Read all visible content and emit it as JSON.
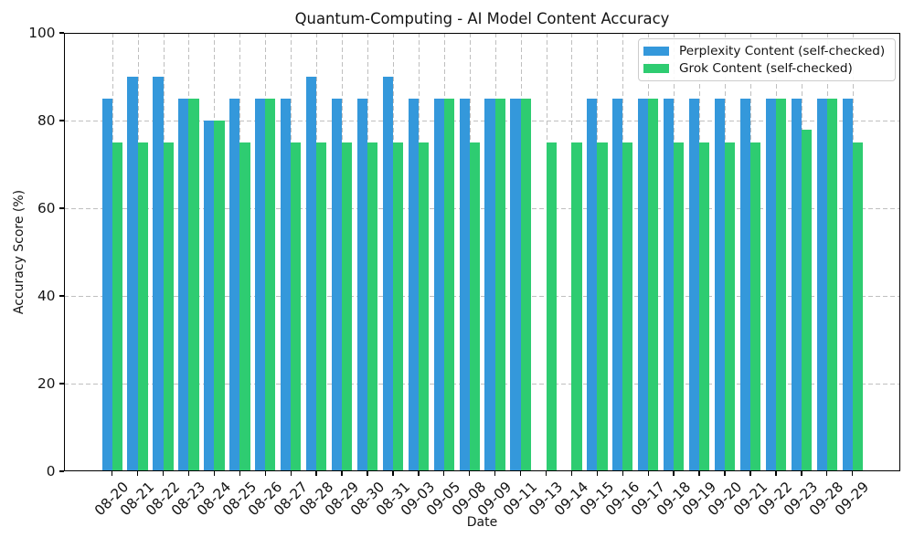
{
  "chart_data": {
    "type": "bar",
    "title": "Quantum-Computing - AI Model Content Accuracy",
    "xlabel": "Date",
    "ylabel": "Accuracy Score (%)",
    "ylim": [
      0,
      100
    ],
    "yticks": [
      0,
      20,
      40,
      60,
      80,
      100
    ],
    "grid": "dashed-both-axes",
    "legend_position": "upper-right",
    "categories": [
      "08-20",
      "08-21",
      "08-22",
      "08-23",
      "08-24",
      "08-25",
      "08-26",
      "08-27",
      "08-28",
      "08-29",
      "08-30",
      "08-31",
      "09-03",
      "09-05",
      "09-08",
      "09-09",
      "09-11",
      "09-13",
      "09-14",
      "09-15",
      "09-16",
      "09-17",
      "09-18",
      "09-19",
      "09-20",
      "09-21",
      "09-22",
      "09-23",
      "09-28",
      "09-29"
    ],
    "series": [
      {
        "name": "Perplexity Content (self-checked)",
        "color": "#3498db",
        "values": [
          85,
          90,
          90,
          85,
          80,
          85,
          85,
          85,
          90,
          85,
          85,
          90,
          85,
          85,
          85,
          85,
          85,
          0,
          0,
          85,
          85,
          85,
          85,
          85,
          85,
          85,
          85,
          85,
          85,
          85
        ]
      },
      {
        "name": "Grok Content (self-checked)",
        "color": "#2ecc71",
        "values": [
          75,
          75,
          75,
          85,
          80,
          75,
          85,
          75,
          75,
          75,
          75,
          75,
          75,
          85,
          75,
          85,
          85,
          75,
          75,
          75,
          75,
          85,
          75,
          75,
          75,
          75,
          85,
          78,
          85,
          75
        ]
      }
    ]
  }
}
